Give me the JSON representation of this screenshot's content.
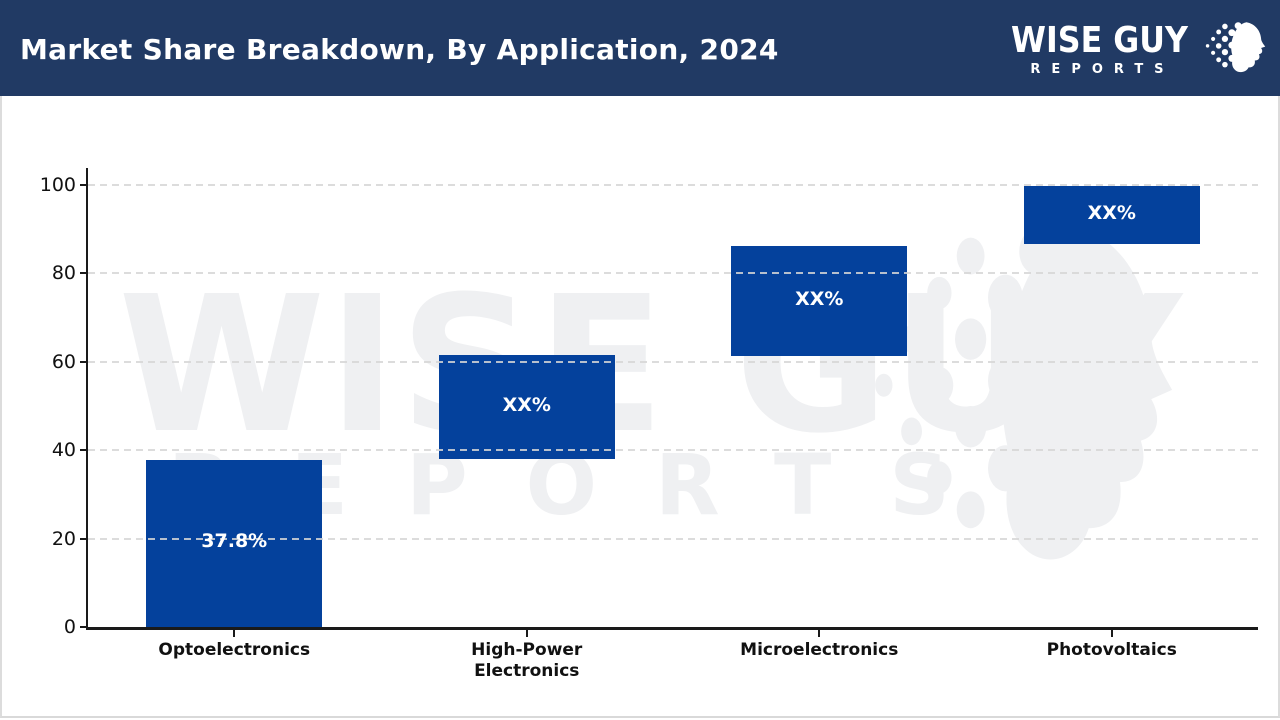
{
  "header": {
    "title": "Market Share Breakdown, By Application, 2024",
    "logo": {
      "line1": "WISE GUY",
      "line2": "REPORTS"
    }
  },
  "watermark": {
    "line1": "WISE GUY",
    "line2": "REPORTS"
  },
  "colors": {
    "header_bg": "#213a64",
    "bar": "#04419c",
    "grid": "#d9d9d9",
    "axis": "#1a1a1a",
    "bar_label": "#ffffff",
    "watermark": "#eff0f2"
  },
  "chart_data": {
    "type": "bar",
    "subtype": "floating-segment-waterfall",
    "title": "Market Share Breakdown, By Application, 2024",
    "categories": [
      "Optoelectronics",
      "High-Power Electronics",
      "Microelectronics",
      "Photovoltaics"
    ],
    "category_label_lines": [
      [
        "Optoelectronics"
      ],
      [
        "High-Power",
        "Electronics"
      ],
      [
        "Microelectronics"
      ],
      [
        "Photovoltaics"
      ]
    ],
    "bars": [
      {
        "category": "Optoelectronics",
        "start": 0.0,
        "end": 37.8,
        "label": "37.8%"
      },
      {
        "category": "High-Power Electronics",
        "start": 38.0,
        "end": 61.5,
        "label": "XX%"
      },
      {
        "category": "Microelectronics",
        "start": 61.3,
        "end": 86.0,
        "label": "XX%"
      },
      {
        "category": "Photovoltaics",
        "start": 86.5,
        "end": 99.6,
        "label": "XX%"
      }
    ],
    "xlabel": "",
    "ylabel": "",
    "yticks": [
      0,
      20,
      40,
      60,
      80,
      100
    ],
    "ylim": [
      0,
      105
    ],
    "grid": "horizontal-dashed",
    "legend_position": "none"
  }
}
